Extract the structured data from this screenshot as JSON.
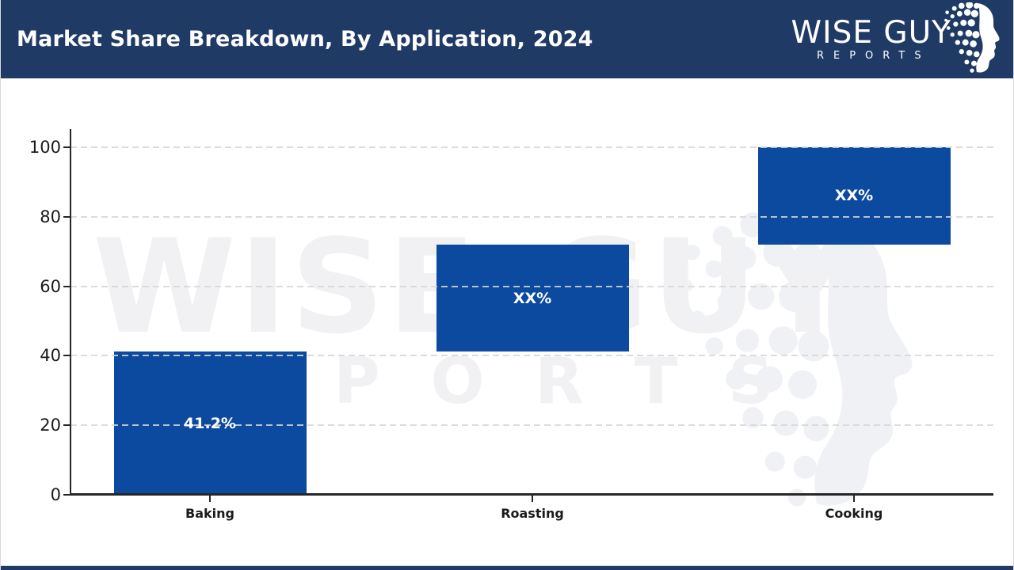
{
  "header": {
    "title": "Market Share Breakdown, By Application, 2024",
    "bg_color": "#203a66",
    "logo": {
      "line1": "WISE GUY",
      "line2": "REPORTS"
    }
  },
  "watermark": {
    "line1": "WISE GUY",
    "line2": "R E P O R T S"
  },
  "chart_data": {
    "type": "bar",
    "variant": "stacked-waterfall",
    "title": "Market Share Breakdown, By Application, 2024",
    "categories": [
      "Baking",
      "Roasting",
      "Cooking"
    ],
    "segments": [
      {
        "category": "Baking",
        "start": 0,
        "end": 41.2,
        "label": "41.2%"
      },
      {
        "category": "Roasting",
        "start": 41.2,
        "end": 72,
        "label": "XX%"
      },
      {
        "category": "Cooking",
        "start": 72,
        "end": 100,
        "label": "XX%"
      }
    ],
    "values_displayed": [
      "41.2%",
      "XX%",
      "XX%"
    ],
    "xlabel": "",
    "ylabel": "",
    "y_ticks": [
      0,
      20,
      40,
      60,
      80,
      100
    ],
    "ylim": [
      0,
      100
    ],
    "grid": "horizontal dashed, drawn above bars",
    "legend": "none",
    "bar_color": "#0b4a9e",
    "bar_label_color": "#ffffff",
    "axis_color": "#262626",
    "grid_color": "#d6d6d6"
  }
}
